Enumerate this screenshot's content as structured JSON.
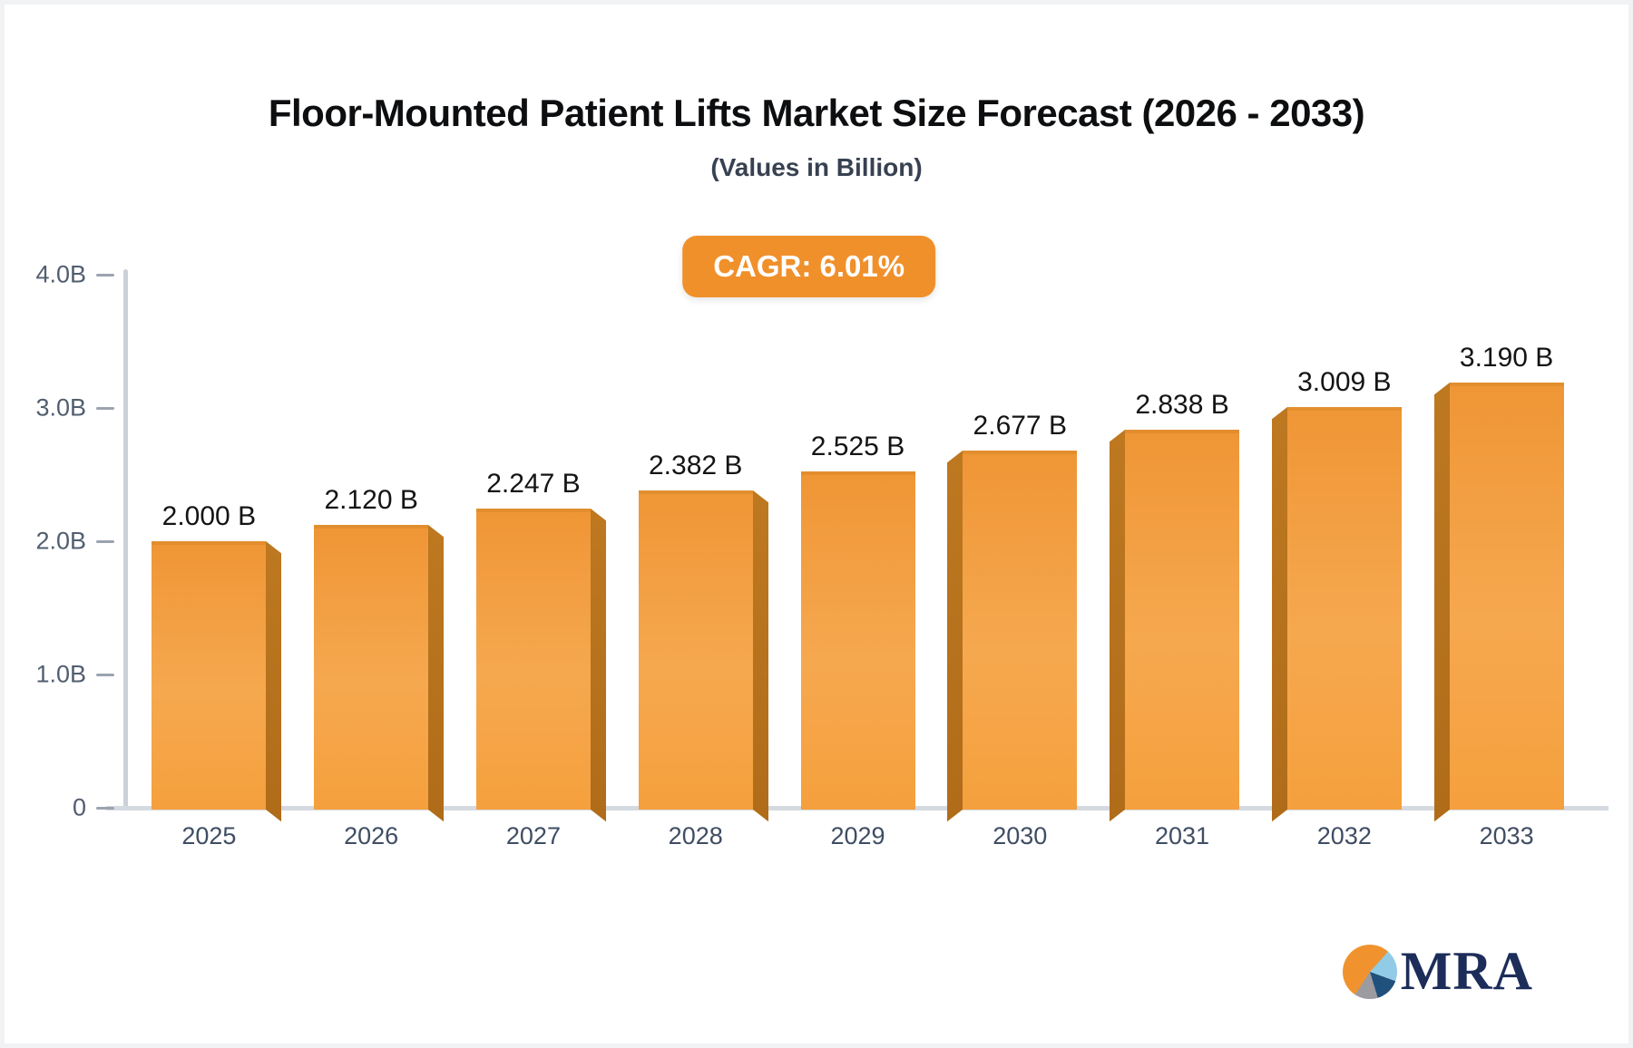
{
  "header": {
    "title": "Floor-Mounted Patient Lifts Market Size Forecast (2026 - 2033)",
    "subtitle": "(Values in Billion)"
  },
  "badge": {
    "cagr_label": "CAGR: 6.01%"
  },
  "logo": {
    "text": "MRA"
  },
  "colors": {
    "accent_orange": "#f0902b",
    "bar_face_top": "#ef9636",
    "bar_face_bottom": "#f5a03d",
    "bar_side": "#b5721c",
    "axis_line": "#ccd1d9",
    "baseline": "#d5d9e0",
    "logo_navy": "#1d2d5a",
    "logo_lightblue": "#92cbe5",
    "logo_gray": "#9b9ba0"
  },
  "chart_data": {
    "type": "bar",
    "title": "Floor-Mounted Patient Lifts Market Size Forecast (2026 - 2033)",
    "subtitle": "(Values in Billion)",
    "annotation": "CAGR: 6.01%",
    "categories": [
      "2025",
      "2026",
      "2027",
      "2028",
      "2029",
      "2030",
      "2031",
      "2032",
      "2033"
    ],
    "values": [
      2.0,
      2.12,
      2.247,
      2.382,
      2.525,
      2.677,
      2.838,
      3.009,
      3.19
    ],
    "value_labels": [
      "2.000 B",
      "2.120 B",
      "2.247 B",
      "2.382 B",
      "2.525 B",
      "2.677 B",
      "2.838 B",
      "3.009 B",
      "3.190 B"
    ],
    "xlabel": "",
    "ylabel": "",
    "ylim": [
      0,
      4
    ],
    "y_ticks": [
      {
        "label": "4.0B",
        "value": 4.0
      },
      {
        "label": "3.0B",
        "value": 3.0
      },
      {
        "label": "2.0B",
        "value": 2.0
      },
      {
        "label": "1.0B",
        "value": 1.0
      },
      {
        "label": "0",
        "value": 0.0
      }
    ],
    "grid": false,
    "legend": false,
    "style": "3d-perspective-bars"
  }
}
